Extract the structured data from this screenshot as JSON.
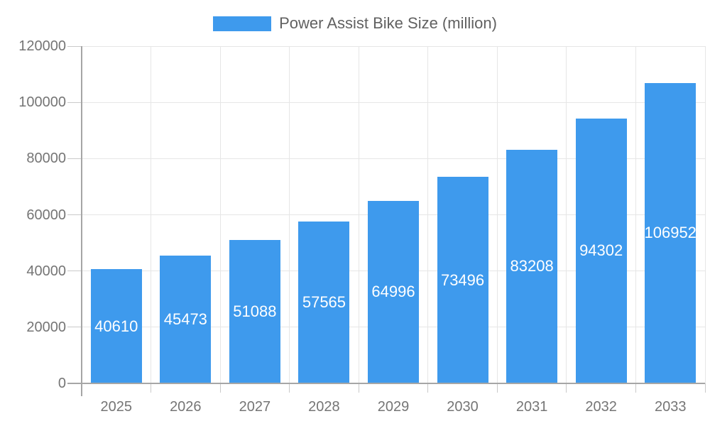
{
  "chart_data": {
    "type": "bar",
    "title": "Power Assist Bike Size (million)",
    "legend": {
      "position": "top",
      "label": "Power Assist Bike Size (million)"
    },
    "categories": [
      "2025",
      "2026",
      "2027",
      "2028",
      "2029",
      "2030",
      "2031",
      "2032",
      "2033"
    ],
    "values": [
      40610,
      45473,
      51088,
      57565,
      64996,
      73496,
      83208,
      94302,
      106952
    ],
    "xlabel": "",
    "ylabel": "",
    "ylim": [
      0,
      120000
    ],
    "ytick_step": 20000,
    "ytick_labels": [
      "0",
      "20000",
      "40000",
      "60000",
      "80000",
      "100000",
      "120000"
    ],
    "grid": true,
    "value_labels": "inside-middle",
    "colors": {
      "bar": "#3E9AED",
      "bar_label_text": "#FFFFFF",
      "grid": "#E6E6E6",
      "tick": "#C9C9C9",
      "axis": "#A6A6A6",
      "axis_text": "#757575",
      "legend_text": "#616161",
      "background": "#FFFFFF"
    }
  }
}
